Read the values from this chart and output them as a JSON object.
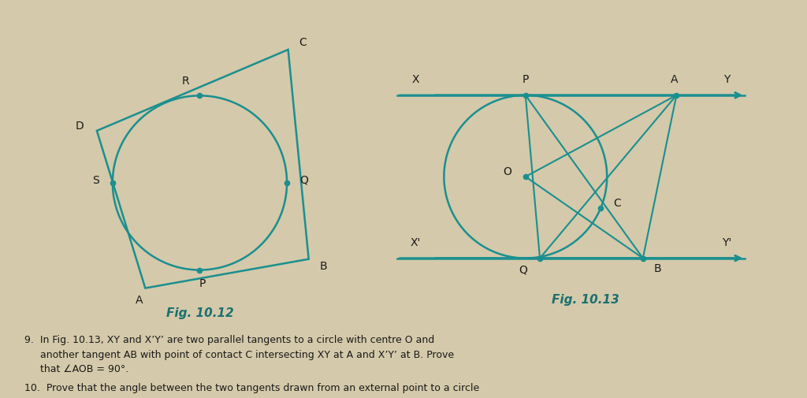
{
  "bg_color": "#d4c9aa",
  "teal": "#1a8f8f",
  "dark_text": "#1a1a1a",
  "teal_text": "#1a7070",
  "fig1_caption": "Fig. 10.12",
  "fig2_caption": "Fig. 10.13",
  "q9_text": "9.  In Fig. 10.13, XY and X’Y’ are two parallel tangents to a circle with centre O and\n     another tangent AB with point of contact C intersecting XY at A and X’Y’ at B. Prove\n     that ∠AOB = 90°.",
  "q10_text": "10.  Prove that the angle between the two tangents drawn from an external point to a circle"
}
